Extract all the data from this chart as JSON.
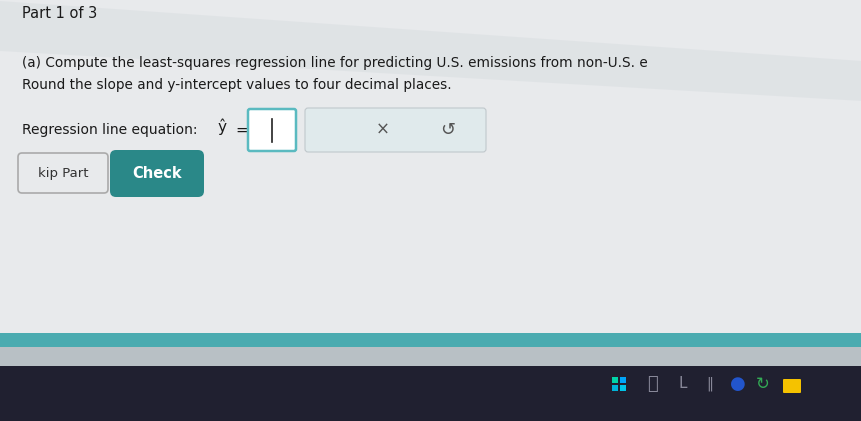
{
  "part_label": "Part 1 of 3",
  "line1": "(a) Compute the least-squares regression line for predicting U.S. emissions from non-U.S. e",
  "line2": "Round the slope and y-intercept values to four decimal places.",
  "reg_label": "Regression line equation: ",
  "btn1": "kip Part",
  "btn2": "Check",
  "bg_top": "#c8cdd2",
  "bg_main": "#e8eaec",
  "bg_stripe": "#d0d4d8",
  "teal_bar": "#4aabb0",
  "taskbar_bg": "#202030",
  "taskbar_light": "#c8cdd2",
  "input_border": "#5abac0",
  "input_bg": "#ffffff",
  "second_box_bg": "#e0eaec",
  "second_box_border": "#c0c8cc",
  "check_bg": "#2a8888",
  "check_text": "#ffffff",
  "skip_bg": "#e8eaec",
  "skip_border": "#aaaaaa",
  "text_dark": "#1a1a1a",
  "text_medium": "#333333",
  "x_color": "#555555",
  "undo_color": "#555555",
  "win_colors": [
    "#00b4d8",
    "#00b4d8",
    "#00d4a8",
    "#00a4f8"
  ],
  "search_color": "#333333",
  "taskbar_icon_color": "#aaaacc"
}
